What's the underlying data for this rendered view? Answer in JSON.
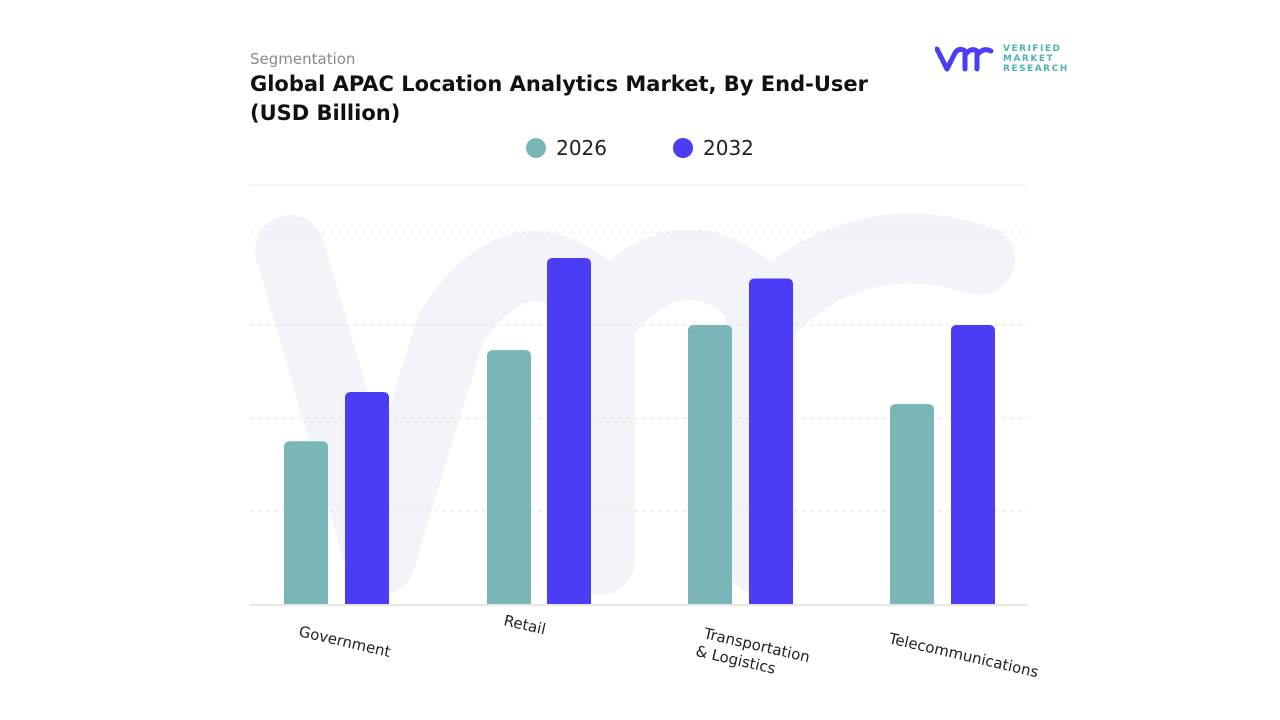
{
  "header": {
    "segment_label": "Segmentation",
    "title": "Global APAC Location Analytics Market, By End-User (USD Billion)"
  },
  "logo": {
    "lines": [
      "VERIFIED",
      "MARKET",
      "RESEARCH"
    ],
    "mark": "vmr"
  },
  "colors": {
    "series_2026": "#7ab5b8",
    "series_2032": "#4b3df6",
    "grid": "#e6e6e6",
    "watermark": "#f3f4fa"
  },
  "chart_data": {
    "type": "bar",
    "title": "Global APAC Location Analytics Market, By End-User (USD Billion)",
    "xlabel": "",
    "ylabel": "",
    "categories": [
      "Government",
      "Retail",
      "Transportation & Logistics",
      "Telecommunications"
    ],
    "series": [
      {
        "name": "2026",
        "color": "#7ab5b8",
        "values": [
          1.75,
          2.73,
          3.0,
          2.15
        ]
      },
      {
        "name": "2032",
        "color": "#4b3df6",
        "values": [
          2.28,
          3.72,
          3.5,
          3.0
        ]
      }
    ],
    "ylim": [
      0,
      4.5
    ],
    "grid": true,
    "y_ticks_labeled": false,
    "legend_position": "top-center"
  }
}
